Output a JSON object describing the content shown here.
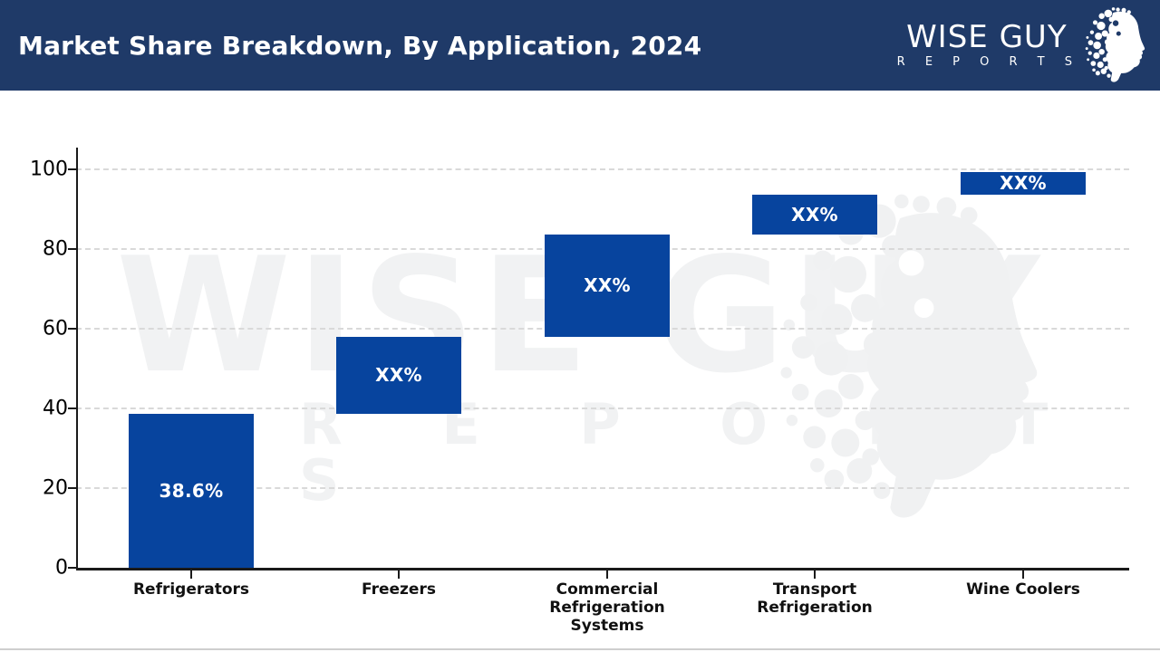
{
  "header": {
    "title": "Market Share Breakdown, By Application, 2024",
    "bg_color": "#1f3a68",
    "logo": {
      "line1": "WISE GUY",
      "line2": "R E P O R T S"
    }
  },
  "watermark": {
    "line1": "WISE GUY",
    "line2": "R E P O R T S"
  },
  "chart_data": {
    "type": "bar",
    "subtype": "waterfall-step",
    "title": "Market Share Breakdown, By Application, 2024",
    "categories": [
      [
        "Refrigerators"
      ],
      [
        "Freezers"
      ],
      [
        "Commercial",
        "Refrigeration",
        "Systems"
      ],
      [
        "Transport",
        "Refrigeration"
      ],
      [
        "Wine Coolers"
      ]
    ],
    "bars": [
      {
        "category": "Refrigerators",
        "start": 0,
        "end": 38.6,
        "label": "38.6%"
      },
      {
        "category": "Commercial Refrigeration Systems",
        "start": 58.0,
        "end": 83.6,
        "label": "XX%"
      },
      {
        "category": "Freezers",
        "start": 38.6,
        "end": 58.0,
        "label": "XX%"
      },
      {
        "category": "Transport Refrigeration",
        "start": 83.6,
        "end": 93.6,
        "label": "XX%"
      },
      {
        "category": "Wine Coolers",
        "start": 93.6,
        "end": 99.4,
        "label": "XX%"
      }
    ],
    "bar_order_note": "bars render left-to-right: Refrigerators, Freezers, Commercial Refrigeration Systems, Transport Refrigeration, Wine Coolers",
    "ylabel": "",
    "xlabel": "",
    "yticks": [
      0,
      20,
      40,
      60,
      80,
      100
    ],
    "ylim": [
      0,
      105
    ],
    "grid": "horizontal-dashed",
    "bar_color": "#07449e",
    "bar_label_color": "#ffffff",
    "grid_color": "#d9d9d9",
    "axis_color": "#1a1a1a"
  }
}
